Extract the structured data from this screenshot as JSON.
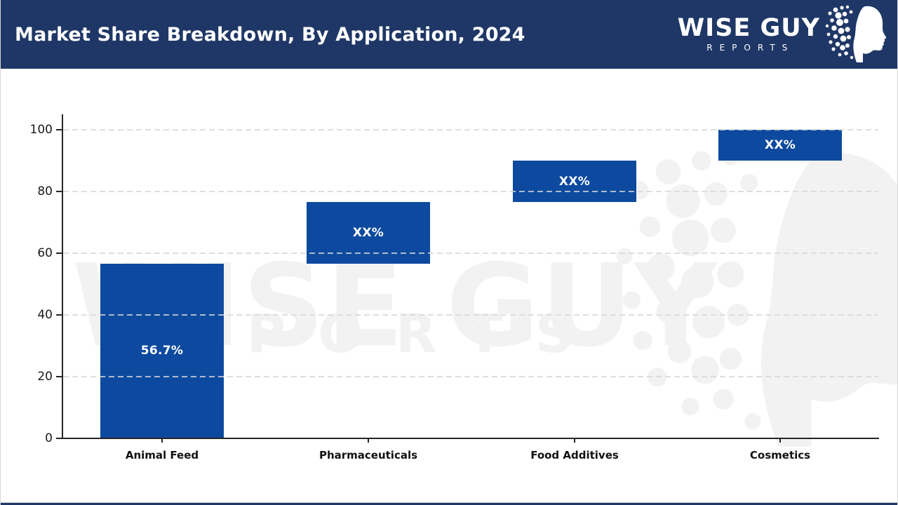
{
  "header": {
    "title": "Market Share Breakdown, By Application, 2024",
    "logo": {
      "line1": "WISE GUY",
      "line2": "REPORTS"
    }
  },
  "watermark": {
    "line1": "WISE GUY",
    "line2": "REPORTS"
  },
  "colors": {
    "header_bg": "#1f3766",
    "bar": "#0d4a9f",
    "bar_label": "#ffffff",
    "axis": "#262626",
    "gridline": "#dcdcdc",
    "watermark": "#f2f2f3",
    "footer_strip": "#1f3766"
  },
  "chart_data": {
    "type": "bar",
    "subtype": "waterfall",
    "title": "Market Share Breakdown, By Application, 2024",
    "xlabel": "",
    "ylabel": "",
    "ylim": [
      0,
      100
    ],
    "yticks": [
      0,
      20,
      40,
      60,
      80,
      100
    ],
    "grid": "horizontal-dashed",
    "legend": "none",
    "categories": [
      "Animal Feed",
      "Pharmaceuticals",
      "Food Additives",
      "Cosmetics"
    ],
    "segments": [
      {
        "category": "Animal Feed",
        "start": 0,
        "end": 56.7,
        "label": "56.7%"
      },
      {
        "category": "Pharmaceuticals",
        "start": 56.7,
        "end": 76.5,
        "label": "XX%"
      },
      {
        "category": "Food Additives",
        "start": 76.5,
        "end": 89.9,
        "label": "XX%"
      },
      {
        "category": "Cosmetics",
        "start": 89.9,
        "end": 100,
        "label": "XX%"
      }
    ]
  }
}
